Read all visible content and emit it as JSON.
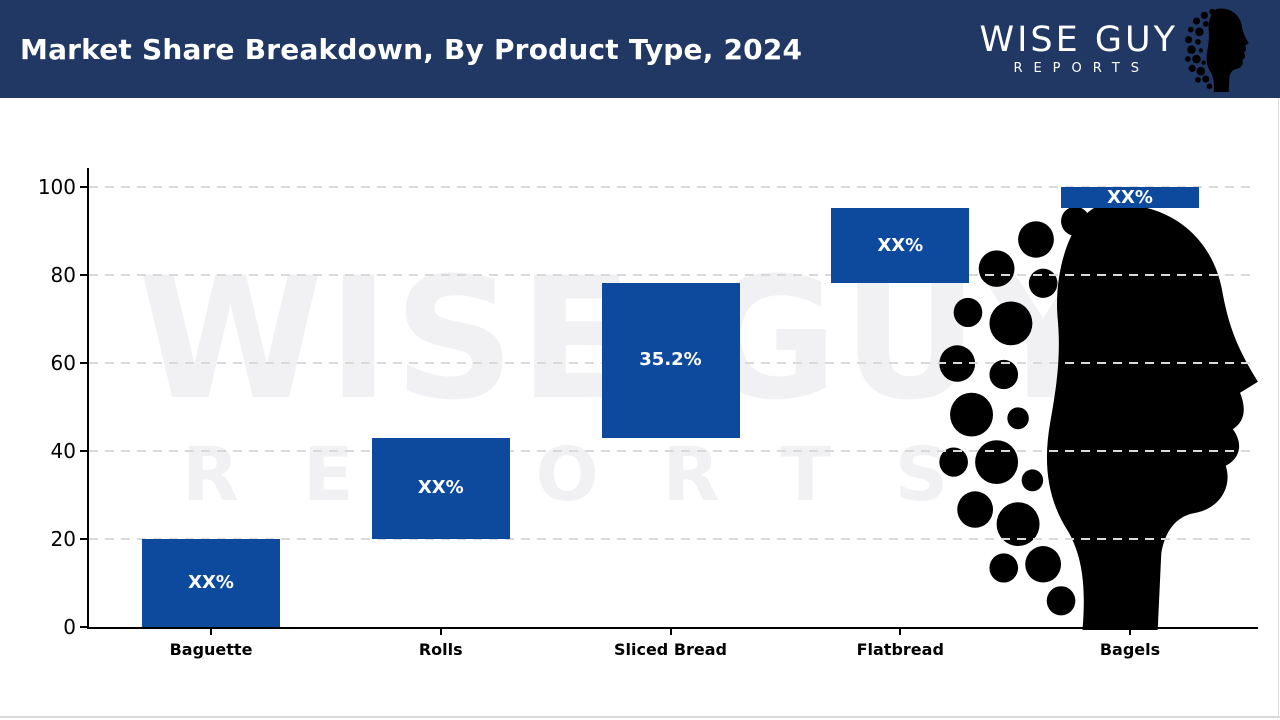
{
  "header": {
    "title": "Market Share Breakdown, By Product Type, 2024",
    "logo": {
      "line1": "WISE GUY",
      "line2": "REPORTS"
    }
  },
  "watermark": {
    "line1": "WISE GUY",
    "line2": "REPORTS"
  },
  "chart_data": {
    "type": "bar",
    "subtype": "waterfall-floating-bars",
    "title": "Market Share Breakdown, By Product Type, 2024",
    "unit": "%",
    "categories": [
      "Baguette",
      "Rolls",
      "Sliced Bread",
      "Flatbread",
      "Bagels"
    ],
    "segments": [
      {
        "category": "Baguette",
        "start": 0,
        "end": 20,
        "value": 20,
        "label": "XX%"
      },
      {
        "category": "Rolls",
        "start": 20,
        "end": 43,
        "value": 23,
        "label": "XX%"
      },
      {
        "category": "Sliced Bread",
        "start": 43,
        "end": 78.2,
        "value": 35.2,
        "label": "35.2%"
      },
      {
        "category": "Flatbread",
        "start": 78.2,
        "end": 95.2,
        "value": 17,
        "label": "XX%"
      },
      {
        "category": "Bagels",
        "start": 95.2,
        "end": 100,
        "value": 4.8,
        "label": "XX%"
      }
    ],
    "yticks": [
      0,
      20,
      40,
      60,
      80,
      100
    ],
    "ylim": [
      0,
      104
    ],
    "xlabel": "",
    "ylabel": "",
    "grid": "horizontal-dashed",
    "legend": "none",
    "bar_color": "#0d4a9e",
    "bar_label_color": "#ffffff",
    "axis_color": "#000000",
    "grid_color": "#d9d9d9",
    "header_bg": "#213865"
  }
}
